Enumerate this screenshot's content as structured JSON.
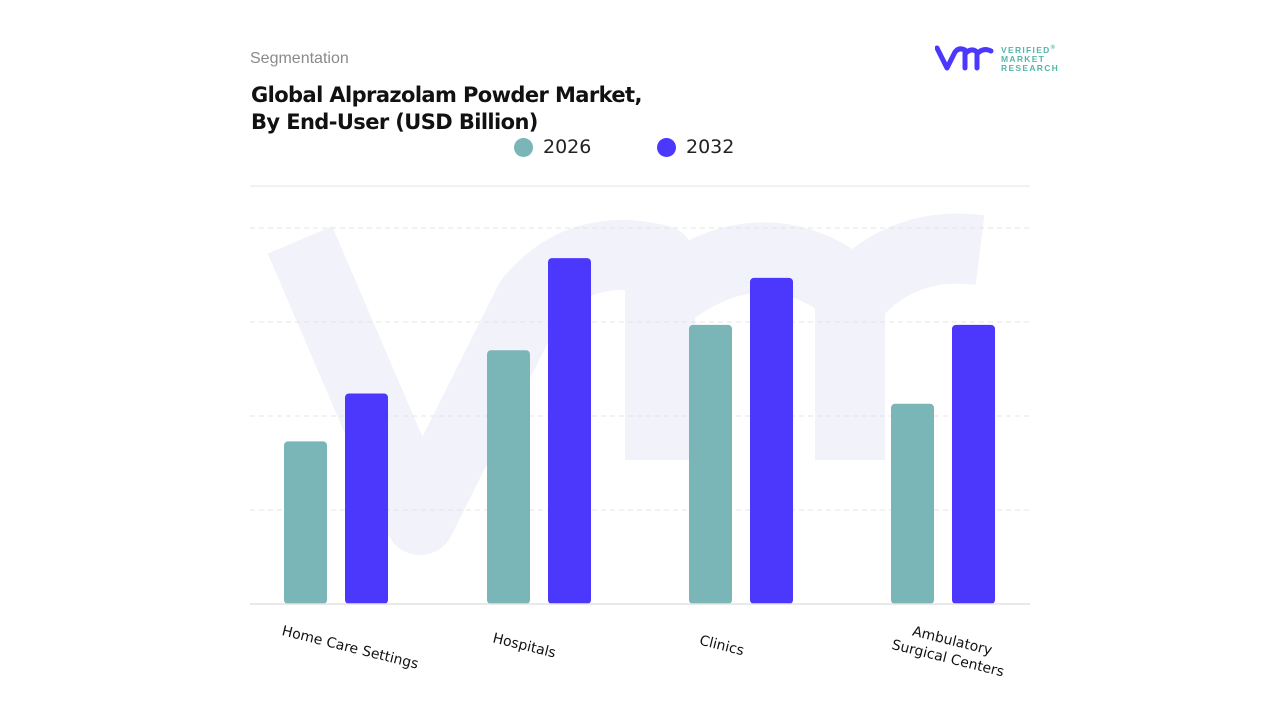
{
  "header": {
    "segment_label": "Segmentation",
    "title_line1": "Global Alprazolam Powder Market,",
    "title_line2": "By End-User (USD Billion)"
  },
  "logo": {
    "line1": "VERIFIED",
    "line2": "MARKET",
    "line3": "RESEARCH",
    "registered": "®"
  },
  "colors": {
    "2026": "#7AB5B8",
    "2032": "#4B38FC",
    "brand_text": "#55B6A8"
  },
  "chart_data": {
    "type": "bar",
    "title": "Global Alprazolam Powder Market, By End-User (USD Billion)",
    "categories": [
      "Home Care Settings",
      "Hospitals",
      "Clinics",
      "Ambulatory Surgical Centers"
    ],
    "series": [
      {
        "name": "2026",
        "values": [
          1.73,
          2.7,
          2.97,
          2.13
        ]
      },
      {
        "name": "2032",
        "values": [
          2.24,
          3.68,
          3.47,
          2.97
        ]
      }
    ],
    "xlabel": "",
    "ylabel": "",
    "ylim": [
      0,
      4.45
    ],
    "grid": true,
    "legend": "top-center",
    "y_tick_labels_shown": false
  }
}
